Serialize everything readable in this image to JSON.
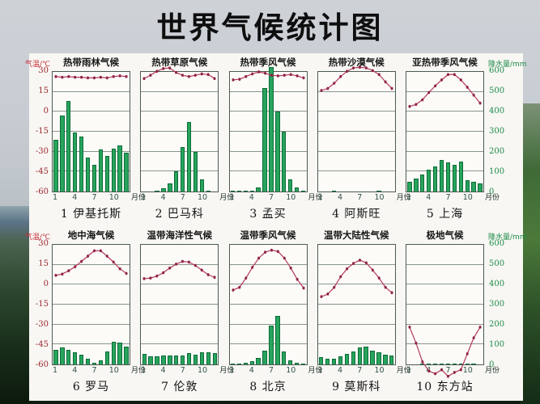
{
  "page": {
    "title": "世界气候统计图"
  },
  "axes": {
    "temp_label": "气温/℃",
    "precip_label": "降水量/mm",
    "temp_ticks": [
      30,
      15,
      0,
      -15,
      -30,
      -45,
      -60
    ],
    "precip_ticks": [
      600,
      500,
      400,
      300,
      200,
      100,
      0
    ],
    "month_ticks": [
      "1",
      "4",
      "7",
      "10"
    ],
    "month_unit": "月份",
    "temp_range": [
      30,
      -60
    ],
    "precip_range": [
      0,
      600
    ]
  },
  "colors": {
    "bar": "#27a45d",
    "bar_border": "#0c6b36",
    "temp_line": "#b43b5e",
    "temp_dot": "#8f2344",
    "grid": "#8a958c",
    "temp_text": "#9c262e",
    "precip_text": "#1d8a4a"
  },
  "chart_data": [
    {
      "type": "bar+line",
      "number": "1",
      "city": "伊基托斯",
      "climate": "热带雨林气候",
      "months": [
        1,
        2,
        3,
        4,
        5,
        6,
        7,
        8,
        9,
        10,
        11,
        12
      ],
      "temperature_c": [
        26.5,
        26,
        26.5,
        26,
        26,
        25.5,
        25.5,
        26,
        25.5,
        26.5,
        27,
        26.5
      ],
      "precipitation_mm": [
        260,
        380,
        455,
        295,
        275,
        170,
        135,
        210,
        180,
        215,
        230,
        195
      ]
    },
    {
      "type": "bar+line",
      "number": "2",
      "city": "巴马科",
      "climate": "热带草原气候",
      "months": [
        1,
        2,
        3,
        4,
        5,
        6,
        7,
        8,
        9,
        10,
        11,
        12
      ],
      "temperature_c": [
        25,
        27.5,
        30.5,
        32.5,
        33,
        29.5,
        27.5,
        26.5,
        27.5,
        28.5,
        28,
        25
      ],
      "precipitation_mm": [
        0,
        0,
        5,
        15,
        40,
        100,
        225,
        350,
        200,
        60,
        5,
        0
      ]
    },
    {
      "type": "bar+line",
      "number": "3",
      "city": "孟买",
      "climate": "热带季风气候",
      "months": [
        1,
        2,
        3,
        4,
        5,
        6,
        7,
        8,
        9,
        10,
        11,
        12
      ],
      "temperature_c": [
        24,
        24.5,
        26.5,
        28.5,
        30,
        29,
        27.5,
        27,
        27.5,
        28,
        27,
        25.5
      ],
      "precipitation_mm": [
        3,
        3,
        3,
        3,
        20,
        520,
        680,
        400,
        300,
        60,
        20,
        5
      ]
    },
    {
      "type": "bar+line",
      "number": "4",
      "city": "阿斯旺",
      "climate": "热带沙漠气候",
      "months": [
        1,
        2,
        3,
        4,
        5,
        6,
        7,
        8,
        9,
        10,
        11,
        12
      ],
      "temperature_c": [
        16,
        17.5,
        21.5,
        26.5,
        30.5,
        33,
        33.5,
        33,
        31,
        28,
        22.5,
        17.5
      ],
      "precipitation_mm": [
        0,
        0,
        2,
        0,
        0,
        0,
        0,
        0,
        0,
        2,
        0,
        0
      ]
    },
    {
      "type": "bar+line",
      "number": "5",
      "city": "上海",
      "climate": "亚热带季风气候",
      "months": [
        1,
        2,
        3,
        4,
        5,
        6,
        7,
        8,
        9,
        10,
        11,
        12
      ],
      "temperature_c": [
        4,
        5.5,
        9,
        14.5,
        19.5,
        24,
        28,
        28,
        24,
        18.5,
        12.5,
        6.5
      ],
      "precipitation_mm": [
        50,
        65,
        85,
        110,
        125,
        160,
        145,
        135,
        150,
        55,
        50,
        40
      ]
    },
    {
      "type": "bar+line",
      "number": "6",
      "city": "罗马",
      "climate": "地中海气候",
      "months": [
        1,
        2,
        3,
        4,
        5,
        6,
        7,
        8,
        9,
        10,
        11,
        12
      ],
      "temperature_c": [
        7,
        8,
        10.5,
        13.5,
        17.5,
        21.5,
        25.5,
        25.5,
        21.5,
        17,
        12,
        8.5
      ],
      "precipitation_mm": [
        75,
        85,
        75,
        60,
        50,
        30,
        10,
        20,
        65,
        115,
        110,
        90
      ]
    },
    {
      "type": "bar+line",
      "number": "7",
      "city": "伦敦",
      "climate": "温带海洋性气候",
      "months": [
        1,
        2,
        3,
        4,
        5,
        6,
        7,
        8,
        9,
        10,
        11,
        12
      ],
      "temperature_c": [
        4.5,
        5,
        6.5,
        9,
        12.5,
        15.5,
        17.5,
        17,
        14.5,
        11,
        7.5,
        5.5
      ],
      "precipitation_mm": [
        52,
        40,
        42,
        45,
        46,
        45,
        45,
        56,
        50,
        62,
        62,
        55
      ]
    },
    {
      "type": "bar+line",
      "number": "8",
      "city": "北京",
      "climate": "温带季风气候",
      "months": [
        1,
        2,
        3,
        4,
        5,
        6,
        7,
        8,
        9,
        10,
        11,
        12
      ],
      "temperature_c": [
        -4,
        -2,
        5,
        13,
        20,
        24.5,
        26,
        25,
        20,
        12.5,
        4,
        -2.5
      ],
      "precipitation_mm": [
        3,
        5,
        8,
        18,
        33,
        70,
        195,
        245,
        65,
        22,
        8,
        3
      ]
    },
    {
      "type": "bar+line",
      "number": "9",
      "city": "莫斯科",
      "climate": "温带大陆性气候",
      "months": [
        1,
        2,
        3,
        4,
        5,
        6,
        7,
        8,
        9,
        10,
        11,
        12
      ],
      "temperature_c": [
        -9,
        -7,
        -2,
        6,
        12,
        16,
        18.5,
        16.5,
        11,
        5,
        -2,
        -6
      ],
      "precipitation_mm": [
        35,
        30,
        30,
        40,
        52,
        65,
        85,
        90,
        70,
        60,
        48,
        45
      ]
    },
    {
      "type": "bar+line",
      "number": "10",
      "city": "东方站",
      "climate": "极地气候",
      "months": [
        1,
        2,
        3,
        4,
        5,
        6,
        7,
        8,
        9,
        10,
        11,
        12
      ],
      "temperature_c": [
        -32,
        -44,
        -58,
        -65,
        -67,
        -64,
        -69,
        -66,
        -64,
        -52,
        -40,
        -32
      ],
      "precipitation_mm": [
        0,
        0,
        3,
        4,
        4,
        3,
        4,
        5,
        4,
        3,
        2,
        0
      ]
    }
  ]
}
